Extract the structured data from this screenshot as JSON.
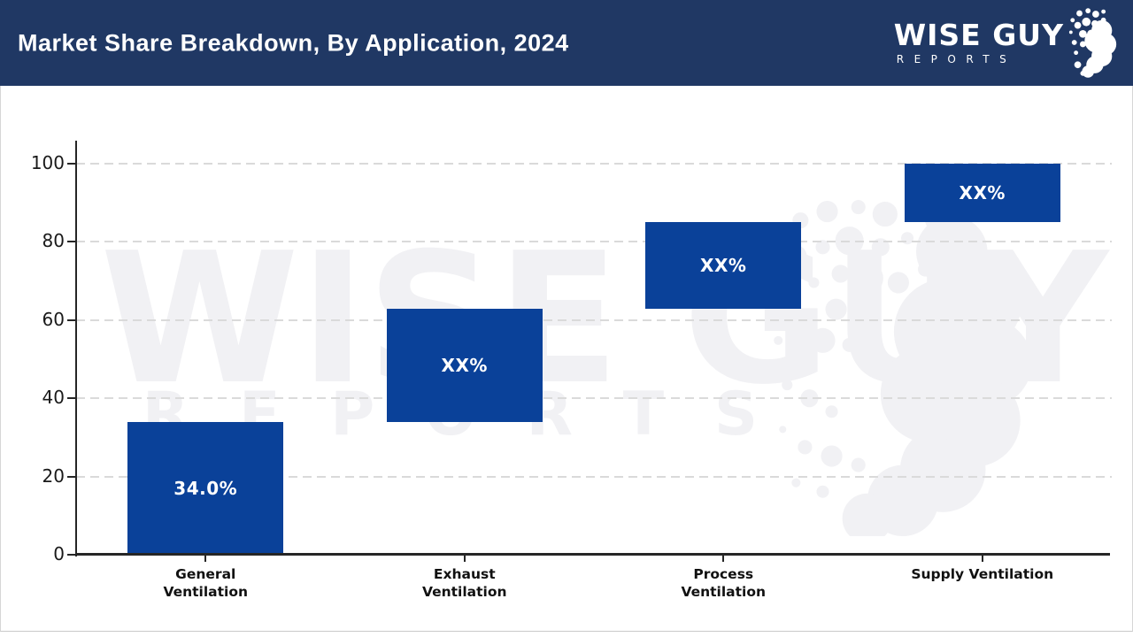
{
  "header": {
    "title": "Market Share Breakdown, By Application, 2024",
    "logo": {
      "brand_top": "WISE GUY",
      "brand_bottom": "REPORTS"
    }
  },
  "watermark": {
    "brand_top": "WISE GUY",
    "brand_bottom_letters": [
      "R",
      "E",
      "P",
      "O",
      "R",
      "T",
      "S"
    ]
  },
  "colors": {
    "header_bg": "#203864",
    "bar": "#0a4199",
    "bar_label": "#ffffff",
    "axis": "#262626",
    "grid": "#dadada",
    "watermark": "#f1f1f4"
  },
  "chart_data": {
    "type": "waterfall",
    "title": "Market Share Breakdown, By Application, 2024",
    "categories": [
      "General Ventilation",
      "Exhaust Ventilation",
      "Process Ventilation",
      "Supply Ventilation"
    ],
    "category_label_lines": [
      [
        "General",
        "Ventilation"
      ],
      [
        "Exhaust",
        "Ventilation"
      ],
      [
        "Process",
        "Ventilation"
      ],
      [
        "Supply Ventilation"
      ]
    ],
    "bars": [
      {
        "category": "General Ventilation",
        "start": 0,
        "end": 34,
        "value": 34,
        "label": "34.0%"
      },
      {
        "category": "Exhaust Ventilation",
        "start": 34,
        "end": 63,
        "value": 29,
        "label": "XX%"
      },
      {
        "category": "Process Ventilation",
        "start": 63,
        "end": 85,
        "value": 22,
        "label": "XX%"
      },
      {
        "category": "Supply Ventilation",
        "start": 85,
        "end": 100,
        "value": 15,
        "label": "XX%"
      }
    ],
    "ylim": [
      0,
      100
    ],
    "yticks": [
      0,
      20,
      40,
      60,
      80,
      100
    ],
    "xlabel": "",
    "ylabel": "",
    "grid": "horizontal-dashed",
    "legend": "none"
  }
}
